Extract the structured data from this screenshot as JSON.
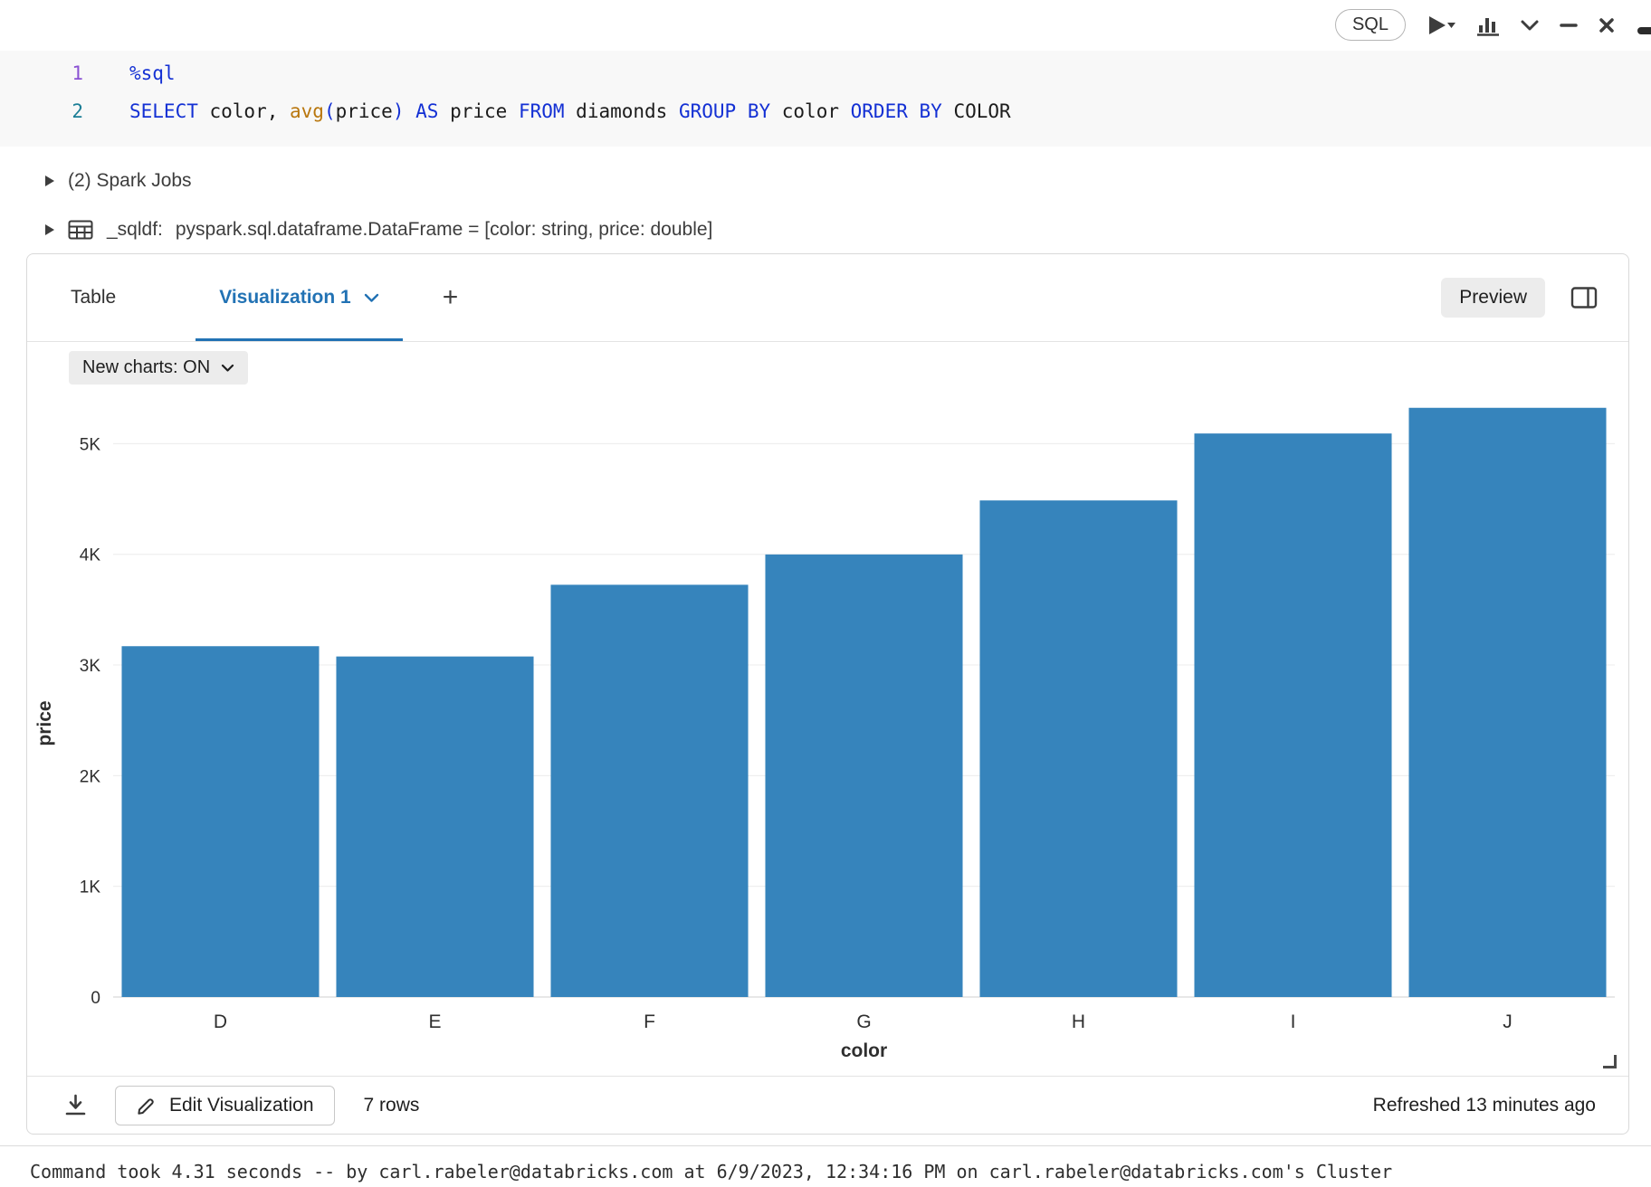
{
  "toolbar": {
    "lang_badge": "SQL"
  },
  "code": {
    "line1": {
      "num": "1",
      "magic": "%sql"
    },
    "line2": {
      "num": "2",
      "kw1": "SELECT",
      "plain1": " color, ",
      "fn1": "avg",
      "p1": "(",
      "arg1": "price",
      "p2": ")",
      "sp1": " ",
      "kw2": "AS",
      "plain2": " price ",
      "kw3": "FROM",
      "plain3": " diamonds ",
      "kw4": "GROUP BY",
      "plain4": " color ",
      "kw5": "ORDER BY",
      "plain5": " COLOR"
    }
  },
  "spark_jobs": {
    "label": "(2) Spark Jobs"
  },
  "sqldf": {
    "name": "_sqldf:",
    "type_info": "pyspark.sql.dataframe.DataFrame = [color: string, price: double]"
  },
  "tabs": {
    "table": "Table",
    "visualization": "Visualization 1",
    "add": "+",
    "preview": "Preview"
  },
  "chart_controls": {
    "new_charts": "New charts: ON"
  },
  "chart_data": {
    "type": "bar",
    "title": "",
    "categories": [
      "D",
      "E",
      "F",
      "G",
      "H",
      "I",
      "J"
    ],
    "values": [
      3170,
      3077,
      3725,
      3999,
      4487,
      5092,
      5324
    ],
    "xlabel": "color",
    "ylabel": "price",
    "ylim": [
      0,
      5600
    ],
    "yticks": [
      0,
      1000,
      2000,
      3000,
      4000,
      5000
    ],
    "ytick_labels": [
      "0",
      "1K",
      "2K",
      "3K",
      "4K",
      "5K"
    ],
    "bar_color": "#3684bc",
    "grid": true,
    "legend": "none"
  },
  "results_footer": {
    "edit_button": "Edit Visualization",
    "rows": "7 rows",
    "refreshed": "Refreshed 13 minutes ago"
  },
  "status_bar": {
    "text": "Command took 4.31 seconds -- by carl.rabeler@databricks.com at 6/9/2023, 12:34:16 PM on carl.rabeler@databricks.com's Cluster"
  },
  "colors": {
    "accent_blue": "#2272b4",
    "bar_blue": "#3684bc"
  }
}
